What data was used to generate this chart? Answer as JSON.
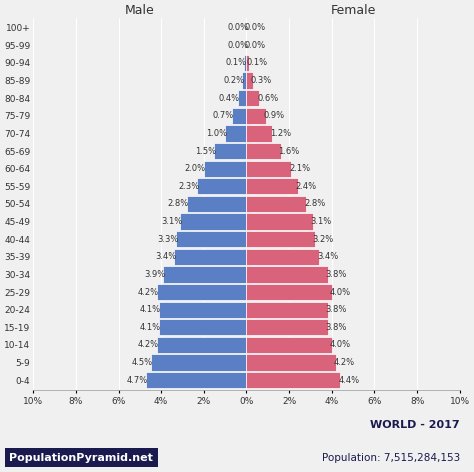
{
  "age_groups": [
    "0-4",
    "5-9",
    "10-14",
    "15-19",
    "20-24",
    "25-29",
    "30-34",
    "35-39",
    "40-44",
    "45-49",
    "50-54",
    "55-59",
    "60-64",
    "65-69",
    "70-74",
    "75-79",
    "80-84",
    "85-89",
    "90-94",
    "95-99",
    "100+"
  ],
  "male": [
    4.7,
    4.5,
    4.2,
    4.1,
    4.1,
    4.2,
    3.9,
    3.4,
    3.3,
    3.1,
    2.8,
    2.3,
    2.0,
    1.5,
    1.0,
    0.7,
    0.4,
    0.2,
    0.1,
    0.0,
    0.0
  ],
  "female": [
    4.4,
    4.2,
    4.0,
    3.8,
    3.8,
    4.0,
    3.8,
    3.4,
    3.2,
    3.1,
    2.8,
    2.4,
    2.1,
    1.6,
    1.2,
    0.9,
    0.6,
    0.3,
    0.1,
    0.0,
    0.0
  ],
  "male_color": "#5b7fc4",
  "female_color": "#d9637a",
  "background_color": "#f0f0f0",
  "plot_bg_color": "#f0f0f0",
  "title": "WORLD - 2017",
  "population_label": "Population: 7,515,284,153",
  "watermark": "PopulationPyramid.net",
  "xlim": 10,
  "label_fontsize": 6.0,
  "tick_fontsize": 6.5,
  "title_fontsize": 9,
  "male_label": "Male",
  "female_label": "Female"
}
